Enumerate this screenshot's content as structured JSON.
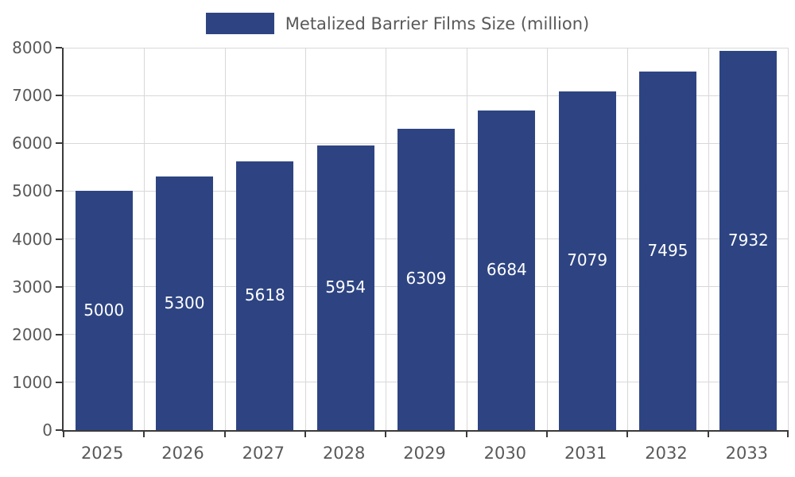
{
  "legend": {
    "label": "Metalized Barrier Films Size (million)"
  },
  "chart_data": {
    "type": "bar",
    "title": "Metalized Barrier Films Size (million)",
    "categories": [
      "2025",
      "2026",
      "2027",
      "2028",
      "2029",
      "2030",
      "2031",
      "2032",
      "2033"
    ],
    "values": [
      5000,
      5300,
      5618,
      5954,
      6309,
      6684,
      7079,
      7495,
      7932
    ],
    "value_labels": [
      "5000",
      "5300",
      "5618",
      "5954",
      "6309",
      "6684",
      "7079",
      "7495",
      "7932"
    ],
    "xlabel": "",
    "ylabel": "",
    "ylim": [
      0,
      8000
    ],
    "yticks": [
      0,
      1000,
      2000,
      3000,
      4000,
      5000,
      6000,
      7000,
      8000
    ],
    "grid": true,
    "legend_position": "top",
    "bar_color": "#2e4482",
    "value_label_color": "#ffffff",
    "grid_color": "#d8d8d8",
    "axis_color": "#3b3b3b",
    "tick_label_color": "#595959"
  }
}
